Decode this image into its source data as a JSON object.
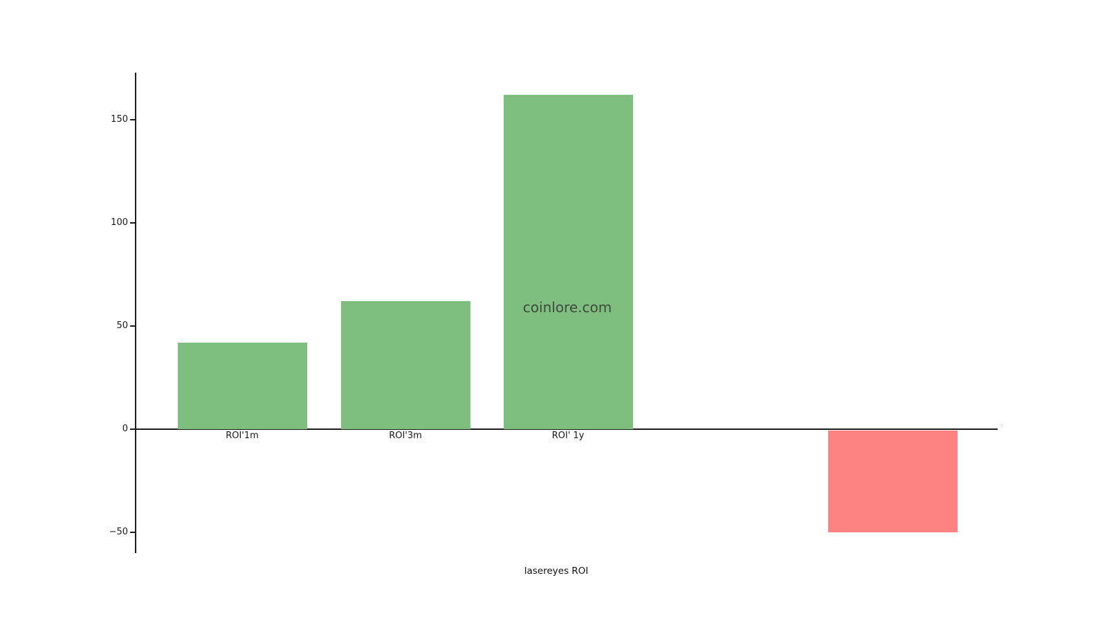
{
  "chart_data": {
    "type": "bar",
    "categories": [
      "ROI'1m",
      "ROI'3m",
      "ROI' 1y",
      ""
    ],
    "values": [
      42,
      62,
      162,
      -50
    ],
    "title": "",
    "xlabel": "lasereyes ROI",
    "ylabel": "",
    "ylim": [
      -60,
      174
    ],
    "yticks": [
      -50,
      0,
      50,
      100,
      150
    ],
    "grid": false,
    "legend": "none",
    "watermark": "coinlore.com",
    "positive_bar_color": "#7ebe7e",
    "negative_bar_color": "#fc8181",
    "axis_color": "#1c1c1c",
    "text_color": "#1a1a1a"
  },
  "artifacts": {
    "axis_end_mark": "×"
  }
}
